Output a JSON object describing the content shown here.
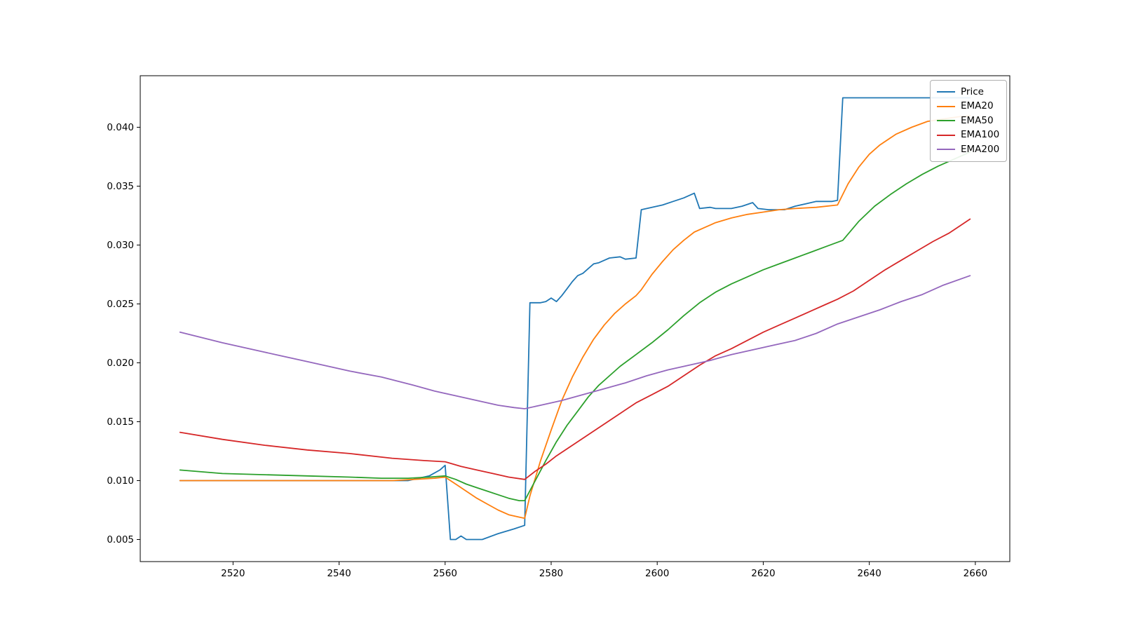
{
  "figure": {
    "background": "#ffffff",
    "axis_color": "#000000"
  },
  "legend": {
    "position": "upper right"
  },
  "chart_data": {
    "type": "line",
    "title": "",
    "xlabel": "",
    "ylabel": "",
    "grid": false,
    "legend_position": "upper right",
    "xlim": [
      2502.5,
      2666.5
    ],
    "ylim": [
      0.003125,
      0.044375
    ],
    "x_ticks": [
      {
        "v": 2520,
        "label": "2520"
      },
      {
        "v": 2540,
        "label": "2540"
      },
      {
        "v": 2560,
        "label": "2560"
      },
      {
        "v": 2580,
        "label": "2580"
      },
      {
        "v": 2600,
        "label": "2600"
      },
      {
        "v": 2620,
        "label": "2620"
      },
      {
        "v": 2640,
        "label": "2640"
      },
      {
        "v": 2660,
        "label": "2660"
      }
    ],
    "y_ticks": [
      {
        "v": 0.005,
        "label": "0.005"
      },
      {
        "v": 0.01,
        "label": "0.010"
      },
      {
        "v": 0.015,
        "label": "0.015"
      },
      {
        "v": 0.02,
        "label": "0.020"
      },
      {
        "v": 0.025,
        "label": "0.025"
      },
      {
        "v": 0.03,
        "label": "0.030"
      },
      {
        "v": 0.035,
        "label": "0.035"
      },
      {
        "v": 0.04,
        "label": "0.040"
      }
    ],
    "series": [
      {
        "name": "Price",
        "color": "#1f77b4",
        "points": [
          [
            2510,
            0.01
          ],
          [
            2545,
            0.01
          ],
          [
            2550,
            0.01
          ],
          [
            2553,
            0.01
          ],
          [
            2555,
            0.0102
          ],
          [
            2557,
            0.0104
          ],
          [
            2559,
            0.0109
          ],
          [
            2560,
            0.0113
          ],
          [
            2561,
            0.005
          ],
          [
            2562,
            0.005
          ],
          [
            2563,
            0.0053
          ],
          [
            2564,
            0.005
          ],
          [
            2567,
            0.005
          ],
          [
            2570,
            0.0055
          ],
          [
            2573,
            0.0059
          ],
          [
            2575,
            0.0062
          ],
          [
            2576,
            0.0251
          ],
          [
            2578,
            0.0251
          ],
          [
            2579,
            0.0252
          ],
          [
            2580,
            0.0255
          ],
          [
            2581,
            0.0252
          ],
          [
            2582,
            0.0257
          ],
          [
            2583,
            0.0263
          ],
          [
            2584,
            0.0269
          ],
          [
            2585,
            0.0274
          ],
          [
            2586,
            0.0276
          ],
          [
            2587,
            0.028
          ],
          [
            2588,
            0.0284
          ],
          [
            2589,
            0.0285
          ],
          [
            2590,
            0.0287
          ],
          [
            2591,
            0.0289
          ],
          [
            2593,
            0.029
          ],
          [
            2594,
            0.0288
          ],
          [
            2596,
            0.0289
          ],
          [
            2597,
            0.033
          ],
          [
            2599,
            0.0332
          ],
          [
            2601,
            0.0334
          ],
          [
            2603,
            0.0337
          ],
          [
            2605,
            0.034
          ],
          [
            2607,
            0.0344
          ],
          [
            2608,
            0.0331
          ],
          [
            2610,
            0.0332
          ],
          [
            2611,
            0.0331
          ],
          [
            2614,
            0.0331
          ],
          [
            2616,
            0.0333
          ],
          [
            2618,
            0.0336
          ],
          [
            2619,
            0.0331
          ],
          [
            2621,
            0.033
          ],
          [
            2624,
            0.033
          ],
          [
            2626,
            0.0333
          ],
          [
            2628,
            0.0335
          ],
          [
            2630,
            0.0337
          ],
          [
            2633,
            0.0337
          ],
          [
            2634,
            0.0338
          ],
          [
            2635,
            0.0425
          ],
          [
            2659,
            0.0425
          ]
        ]
      },
      {
        "name": "EMA20",
        "color": "#ff7f0e",
        "points": [
          [
            2510,
            0.01
          ],
          [
            2550,
            0.01
          ],
          [
            2554,
            0.0101
          ],
          [
            2558,
            0.0102
          ],
          [
            2560,
            0.0103
          ],
          [
            2562,
            0.0097
          ],
          [
            2564,
            0.0091
          ],
          [
            2566,
            0.0085
          ],
          [
            2568,
            0.008
          ],
          [
            2570,
            0.0075
          ],
          [
            2572,
            0.0071
          ],
          [
            2574,
            0.0069
          ],
          [
            2575,
            0.0068
          ],
          [
            2576,
            0.0087
          ],
          [
            2577,
            0.0102
          ],
          [
            2578,
            0.0117
          ],
          [
            2580,
            0.0143
          ],
          [
            2582,
            0.0168
          ],
          [
            2584,
            0.0188
          ],
          [
            2586,
            0.0205
          ],
          [
            2588,
            0.022
          ],
          [
            2590,
            0.0232
          ],
          [
            2592,
            0.0242
          ],
          [
            2594,
            0.025
          ],
          [
            2596,
            0.0257
          ],
          [
            2597,
            0.0262
          ],
          [
            2599,
            0.0275
          ],
          [
            2601,
            0.0286
          ],
          [
            2603,
            0.0296
          ],
          [
            2605,
            0.0304
          ],
          [
            2607,
            0.0311
          ],
          [
            2609,
            0.0315
          ],
          [
            2611,
            0.0319
          ],
          [
            2614,
            0.0323
          ],
          [
            2617,
            0.0326
          ],
          [
            2620,
            0.0328
          ],
          [
            2623,
            0.033
          ],
          [
            2626,
            0.0331
          ],
          [
            2630,
            0.0332
          ],
          [
            2634,
            0.0334
          ],
          [
            2636,
            0.0352
          ],
          [
            2638,
            0.0366
          ],
          [
            2640,
            0.0377
          ],
          [
            2642,
            0.0385
          ],
          [
            2645,
            0.0394
          ],
          [
            2648,
            0.04
          ],
          [
            2651,
            0.0405
          ],
          [
            2654,
            0.0407
          ],
          [
            2657,
            0.0409
          ],
          [
            2659,
            0.041
          ]
        ]
      },
      {
        "name": "EMA50",
        "color": "#2ca02c",
        "points": [
          [
            2510,
            0.0109
          ],
          [
            2518,
            0.0106
          ],
          [
            2526,
            0.0105
          ],
          [
            2534,
            0.0104
          ],
          [
            2542,
            0.0103
          ],
          [
            2548,
            0.0102
          ],
          [
            2553,
            0.0102
          ],
          [
            2557,
            0.0103
          ],
          [
            2560,
            0.0104
          ],
          [
            2562,
            0.0101
          ],
          [
            2564,
            0.0097
          ],
          [
            2566,
            0.0094
          ],
          [
            2568,
            0.0091
          ],
          [
            2570,
            0.0088
          ],
          [
            2572,
            0.0085
          ],
          [
            2574,
            0.0083
          ],
          [
            2575,
            0.0083
          ],
          [
            2577,
            0.01
          ],
          [
            2579,
            0.0117
          ],
          [
            2581,
            0.0133
          ],
          [
            2583,
            0.0147
          ],
          [
            2585,
            0.0159
          ],
          [
            2587,
            0.0171
          ],
          [
            2589,
            0.0181
          ],
          [
            2591,
            0.0189
          ],
          [
            2593,
            0.0197
          ],
          [
            2596,
            0.0207
          ],
          [
            2599,
            0.0217
          ],
          [
            2602,
            0.0228
          ],
          [
            2605,
            0.024
          ],
          [
            2608,
            0.0251
          ],
          [
            2611,
            0.026
          ],
          [
            2614,
            0.0267
          ],
          [
            2617,
            0.0273
          ],
          [
            2620,
            0.0279
          ],
          [
            2623,
            0.0284
          ],
          [
            2626,
            0.0289
          ],
          [
            2629,
            0.0294
          ],
          [
            2632,
            0.0299
          ],
          [
            2635,
            0.0304
          ],
          [
            2638,
            0.032
          ],
          [
            2641,
            0.0333
          ],
          [
            2644,
            0.0343
          ],
          [
            2647,
            0.0352
          ],
          [
            2650,
            0.036
          ],
          [
            2653,
            0.0367
          ],
          [
            2656,
            0.0373
          ],
          [
            2659,
            0.0379
          ]
        ]
      },
      {
        "name": "EMA100",
        "color": "#d62728",
        "points": [
          [
            2510,
            0.0141
          ],
          [
            2518,
            0.0135
          ],
          [
            2526,
            0.013
          ],
          [
            2534,
            0.0126
          ],
          [
            2542,
            0.0123
          ],
          [
            2550,
            0.0119
          ],
          [
            2556,
            0.0117
          ],
          [
            2560,
            0.0116
          ],
          [
            2563,
            0.0112
          ],
          [
            2566,
            0.0109
          ],
          [
            2569,
            0.0106
          ],
          [
            2572,
            0.0103
          ],
          [
            2575,
            0.0101
          ],
          [
            2577,
            0.0108
          ],
          [
            2579,
            0.0114
          ],
          [
            2581,
            0.0121
          ],
          [
            2584,
            0.013
          ],
          [
            2587,
            0.0139
          ],
          [
            2590,
            0.0148
          ],
          [
            2593,
            0.0157
          ],
          [
            2596,
            0.0166
          ],
          [
            2599,
            0.0173
          ],
          [
            2602,
            0.018
          ],
          [
            2605,
            0.0189
          ],
          [
            2608,
            0.0198
          ],
          [
            2611,
            0.0206
          ],
          [
            2614,
            0.0212
          ],
          [
            2617,
            0.0219
          ],
          [
            2620,
            0.0226
          ],
          [
            2623,
            0.0232
          ],
          [
            2626,
            0.0238
          ],
          [
            2629,
            0.0244
          ],
          [
            2632,
            0.025
          ],
          [
            2634,
            0.0254
          ],
          [
            2637,
            0.0261
          ],
          [
            2640,
            0.027
          ],
          [
            2643,
            0.0279
          ],
          [
            2646,
            0.0287
          ],
          [
            2649,
            0.0295
          ],
          [
            2652,
            0.0303
          ],
          [
            2655,
            0.031
          ],
          [
            2657,
            0.0316
          ],
          [
            2659,
            0.0322
          ]
        ]
      },
      {
        "name": "EMA200",
        "color": "#9467bd",
        "points": [
          [
            2510,
            0.0226
          ],
          [
            2518,
            0.0217
          ],
          [
            2526,
            0.0209
          ],
          [
            2534,
            0.0201
          ],
          [
            2542,
            0.0193
          ],
          [
            2548,
            0.0188
          ],
          [
            2554,
            0.0181
          ],
          [
            2558,
            0.0176
          ],
          [
            2562,
            0.0172
          ],
          [
            2566,
            0.0168
          ],
          [
            2570,
            0.0164
          ],
          [
            2573,
            0.0162
          ],
          [
            2575,
            0.0161
          ],
          [
            2578,
            0.0164
          ],
          [
            2582,
            0.0168
          ],
          [
            2586,
            0.0173
          ],
          [
            2590,
            0.0178
          ],
          [
            2594,
            0.0183
          ],
          [
            2598,
            0.0189
          ],
          [
            2602,
            0.0194
          ],
          [
            2606,
            0.0198
          ],
          [
            2610,
            0.0202
          ],
          [
            2614,
            0.0207
          ],
          [
            2618,
            0.0211
          ],
          [
            2622,
            0.0215
          ],
          [
            2626,
            0.0219
          ],
          [
            2630,
            0.0225
          ],
          [
            2634,
            0.0233
          ],
          [
            2638,
            0.0239
          ],
          [
            2642,
            0.0245
          ],
          [
            2646,
            0.0252
          ],
          [
            2650,
            0.0258
          ],
          [
            2654,
            0.0266
          ],
          [
            2659,
            0.0274
          ]
        ]
      }
    ]
  }
}
